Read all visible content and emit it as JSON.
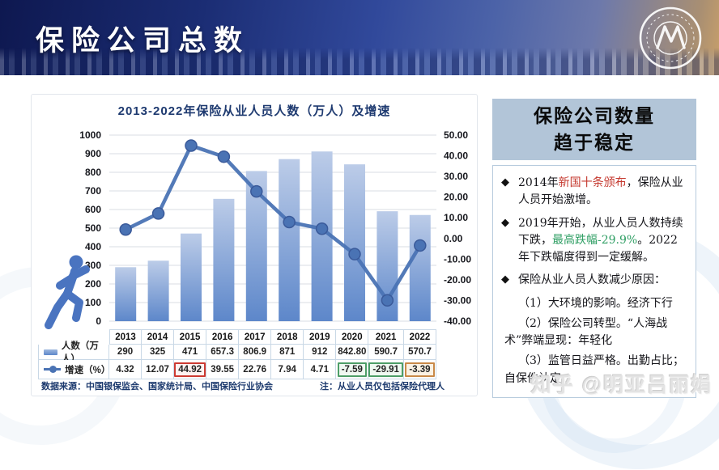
{
  "header": {
    "title": "保险公司总数",
    "logo_name": "circular-company-seal"
  },
  "chart_panel": {
    "source_note": "数据来源：中国银保监会、国家统计局、中国保险行业协会",
    "side_note": "注：从业人员仅包括保险代理人"
  },
  "chart_data": {
    "type": "combo-bar-line",
    "title": "2013-2022年保险从业人员人数（万人）及增速",
    "categories": [
      "2013",
      "2014",
      "2015",
      "2016",
      "2017",
      "2018",
      "2019",
      "2020",
      "2021",
      "2022"
    ],
    "series": [
      {
        "name": "人数（万人）",
        "type": "bar",
        "axis": "left",
        "values": [
          290,
          325,
          471,
          657.3,
          806.9,
          871,
          912,
          842.8,
          590.7,
          570.7
        ],
        "display": [
          "290",
          "325",
          "471",
          "657.3",
          "806.9",
          "871",
          "912",
          "842.80",
          "590.7",
          "570.7"
        ]
      },
      {
        "name": "增速（%）",
        "type": "line",
        "axis": "right",
        "values": [
          4.32,
          12.07,
          44.92,
          39.55,
          22.76,
          7.94,
          4.71,
          -7.59,
          -29.91,
          -3.39
        ],
        "display": [
          "4.32",
          "12.07",
          "44.92",
          "39.55",
          "22.76",
          "7.94",
          "4.71",
          "-7.59",
          "-29.91",
          "-3.39"
        ]
      }
    ],
    "left_axis": {
      "min": 0,
      "max": 1000,
      "step": 100
    },
    "right_axis": {
      "min": -40,
      "max": 50,
      "step": 10,
      "decimals": 2
    },
    "highlights": [
      null,
      null,
      "red",
      null,
      null,
      null,
      null,
      "green",
      "green",
      "orange"
    ],
    "grid": true,
    "legend_position": "table-left"
  },
  "colors": {
    "bar_top": "#bccce8",
    "bar_bottom": "#5d87ca",
    "line": "#4a73b4",
    "line_marker_edge": "#3a5a9a",
    "grid": "#d8dde3",
    "highlight_red": "#cd3a32",
    "highlight_green": "#4d9e67",
    "highlight_orange": "#c98948",
    "sidebar_heading_bg": "#b2c5d8",
    "accent_red_text": "#c5392f",
    "accent_green_text": "#2e9e63",
    "title_navy": "#1e3a70"
  },
  "sidebar": {
    "heading_line1": "保险公司数量",
    "heading_line2": "趋于稳定",
    "bullets": [
      {
        "segments": [
          {
            "t": "2014年",
            "c": "dark"
          },
          {
            "t": "新国十条颁布",
            "c": "red"
          },
          {
            "t": "，保险从业人员开始激增。",
            "c": "dark"
          }
        ]
      },
      {
        "segments": [
          {
            "t": "2019年开始，从业人员人数持续下跌，",
            "c": "dark"
          },
          {
            "t": "最高跌幅-29.9%",
            "c": "green"
          },
          {
            "t": "。2022年下跌幅度得到一定缓解。",
            "c": "dark"
          }
        ]
      },
      {
        "segments": [
          {
            "t": "保险从业人员人数减少原因：",
            "c": "dark"
          }
        ],
        "sub_items": [
          "（1）大环境的影响。经济下行",
          "（2）保险公司转型。“人海战术”弊端显现：年轻化",
          "（3）监管日益严格。出勤占比；自保件认定"
        ]
      }
    ]
  },
  "watermark": "知乎 @明亚吕丽娟"
}
